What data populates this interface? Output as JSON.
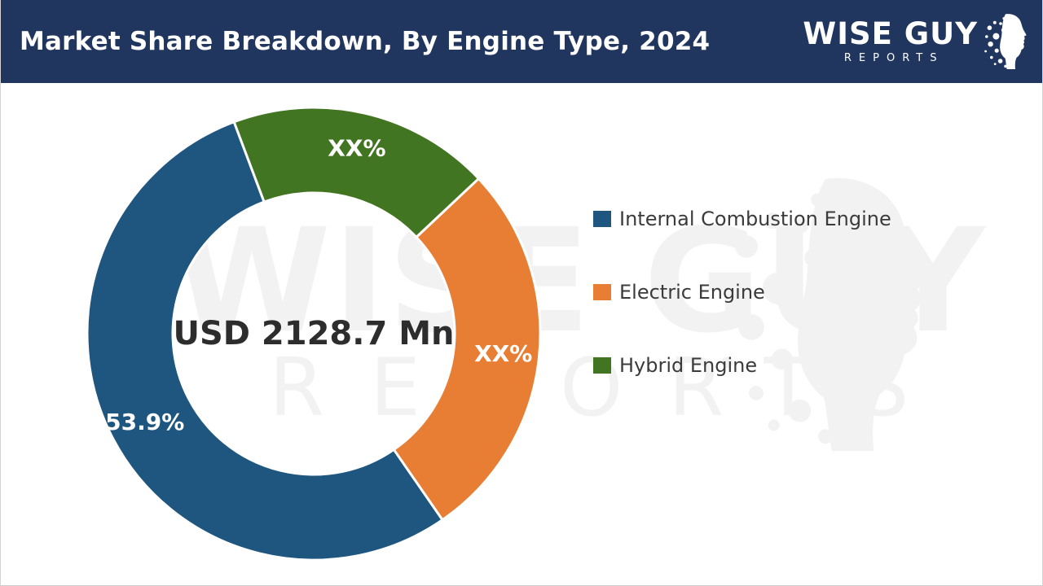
{
  "header": {
    "title": "Market Share Breakdown, By Engine Type, 2024",
    "logo": {
      "line1": "WISE GUY",
      "line2": "REPORTS"
    }
  },
  "watermark": {
    "line1": "WISE GUY",
    "line2": "REPORTS"
  },
  "chart_data": {
    "type": "donut",
    "title": "Market Share Breakdown, By Engine Type, 2024",
    "center_label": "USD 2128.7 Mn",
    "series": [
      {
        "name": "Internal Combustion Engine",
        "value": 53.9,
        "display_label": "53.9%",
        "color": "#1f567f"
      },
      {
        "name": "Electric Engine",
        "value": 27.4,
        "display_label": "XX%",
        "color": "#e87e33"
      },
      {
        "name": "Hybrid Engine",
        "value": 18.7,
        "display_label": "XX%",
        "color": "#427521"
      }
    ],
    "layout": {
      "start_angle_deg": 110.6,
      "direction": "counterclockwise",
      "outer_radius": 278,
      "inner_radius": 173,
      "label_radius": 234,
      "slice_separator_color": "#ffffff",
      "legend_position": "right",
      "legend_row_centers_y": [
        270,
        360,
        450
      ]
    }
  },
  "colors": {
    "header_bg": "#20365f",
    "header_text": "#ffffff",
    "watermark": "#f2f2f2",
    "center_text": "#2d2d2d",
    "legend_text": "#3b3b3b",
    "page_bg": "#ffffff",
    "page_border": "#cccccc"
  }
}
